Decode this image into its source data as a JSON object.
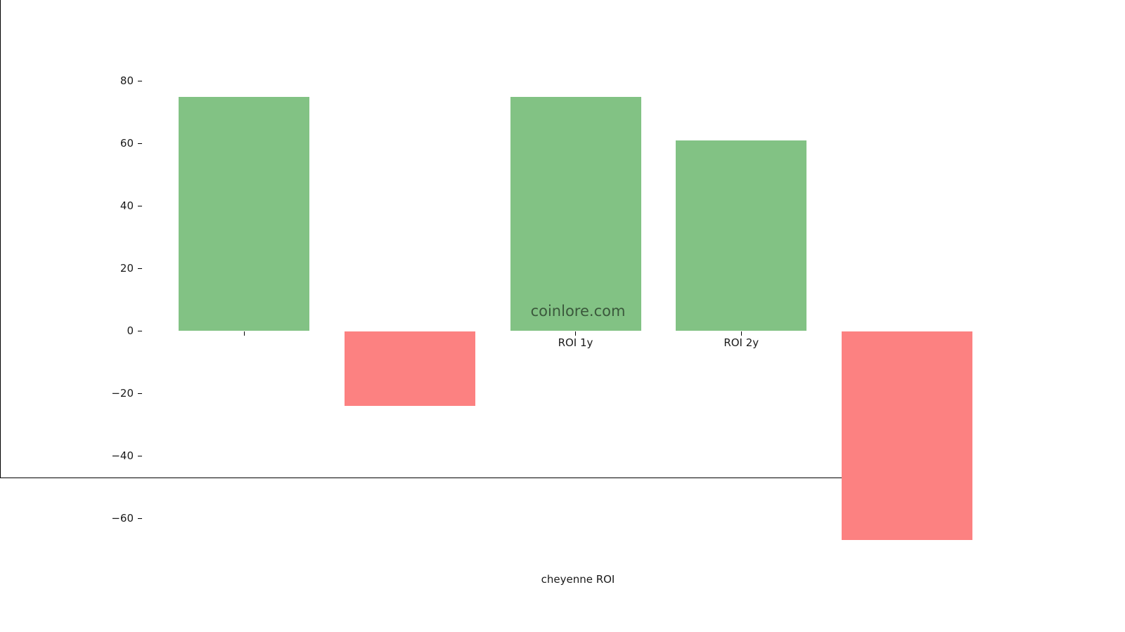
{
  "chart_data": {
    "type": "bar",
    "title": "",
    "xlabel": "cheyenne ROI",
    "ylabel": "",
    "categories": [
      "",
      "",
      "ROI 1y",
      "ROI 2y",
      ""
    ],
    "values": [
      75,
      -24,
      75,
      61,
      -67
    ],
    "series_note": "single series; positive bars green, negative bars red",
    "positive_color": "#82c284",
    "negative_color": "#fc8181",
    "axis_color": "#000000",
    "text_color": "#1a1a1a",
    "ytick_values": [
      80,
      60,
      40,
      20,
      0,
      -20,
      -40,
      -60
    ],
    "ylim": [
      -70.5,
      82.4
    ],
    "grid": false,
    "legend": null,
    "watermark": "coinlore.com"
  }
}
